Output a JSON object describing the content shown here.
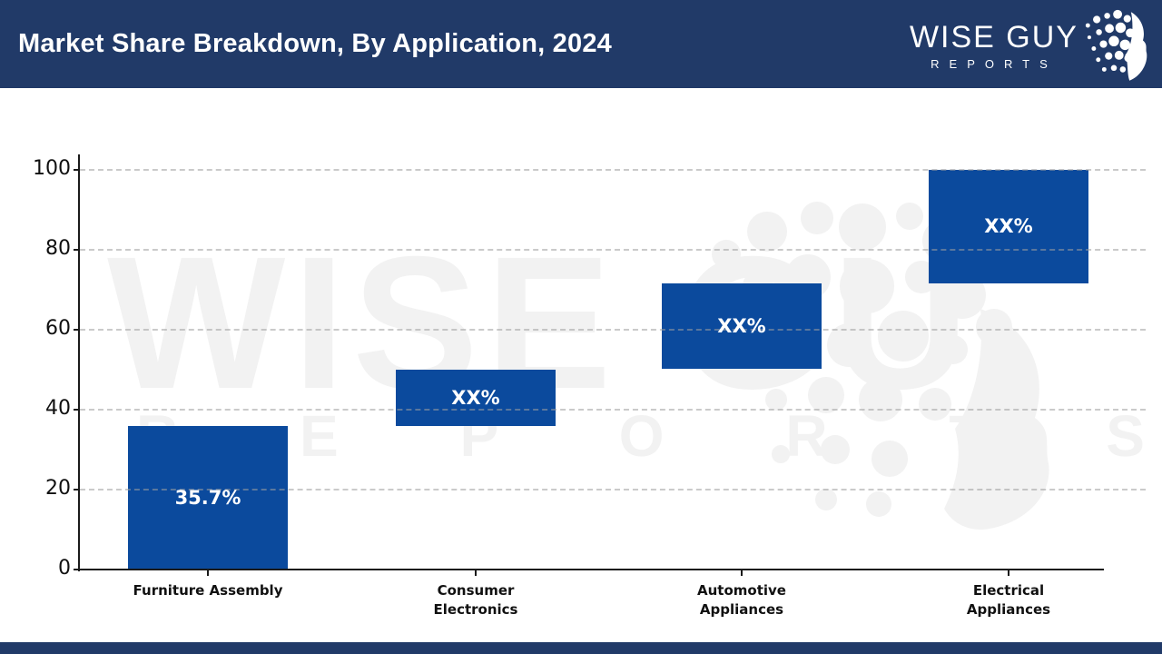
{
  "header": {
    "title": "Market Share Breakdown, By Application, 2024",
    "background_color": "#213a68",
    "logo": {
      "line1": "WISE GUY",
      "line2": "REPORTS"
    }
  },
  "watermark": {
    "line1": "WISE GU",
    "line2": "R E P O R T S"
  },
  "footer": {
    "background_color": "#213a68"
  },
  "chart_data": {
    "type": "bar",
    "subtype": "floating-waterfall",
    "title": "Market Share Breakdown, By Application, 2024",
    "categories": [
      "Furniture Assembly",
      "Consumer Electronics",
      "Automotive Appliances",
      "Electrical Appliances"
    ],
    "category_label_lines": [
      [
        "Furniture Assembly"
      ],
      [
        "Consumer",
        "Electronics"
      ],
      [
        "Automotive",
        "Appliances"
      ],
      [
        "Electrical",
        "Appliances"
      ]
    ],
    "bars": [
      {
        "category": "Furniture Assembly",
        "start": 0,
        "end": 35.7,
        "label": "35.7%"
      },
      {
        "category": "Consumer Electronics",
        "start": 35.7,
        "end": 50.0,
        "label": "XX%"
      },
      {
        "category": "Automotive Appliances",
        "start": 50.0,
        "end": 71.5,
        "label": "XX%"
      },
      {
        "category": "Electrical Appliances",
        "start": 71.5,
        "end": 100.0,
        "label": "XX%"
      }
    ],
    "ylim": [
      0,
      100
    ],
    "yticks": [
      0,
      20,
      40,
      60,
      80,
      100
    ],
    "xlabel": "",
    "ylabel": "",
    "bar_color": "#0b4a9d",
    "grid": {
      "horizontal": true,
      "style": "dashed"
    },
    "legend": null
  }
}
